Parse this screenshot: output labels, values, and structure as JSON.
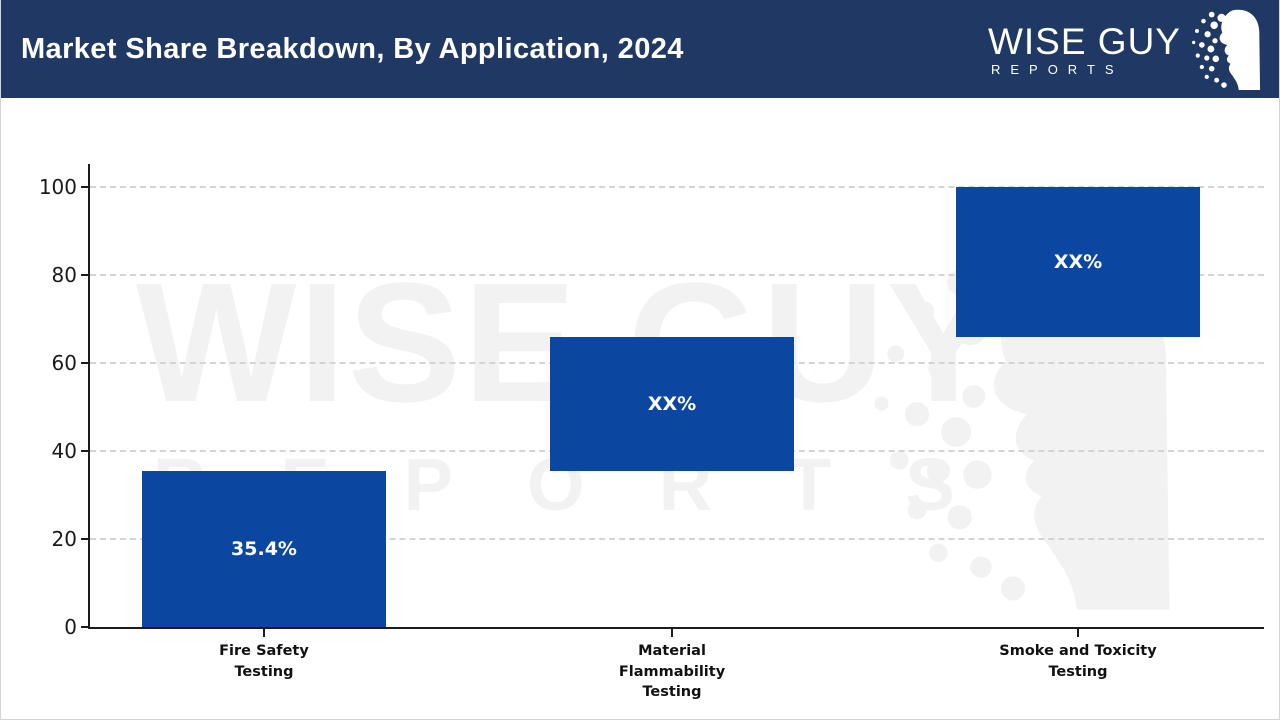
{
  "header": {
    "title": "Market Share Breakdown, By Application, 2024",
    "brand": {
      "line1": "WISE GUY",
      "line2": "REPORTS"
    }
  },
  "watermark": {
    "line1": "WISE GUY",
    "line2": "REPORTS"
  },
  "colors": {
    "header_bg": "#1f3864",
    "bar_fill": "#0b47a1",
    "grid": "#d4d4d4",
    "axis": "#1c1c1c",
    "watermark": "#f2f2f2"
  },
  "chart_data": {
    "type": "bar",
    "subtype": "floating-segment-waterfall",
    "title": "Market Share Breakdown, By Application, 2024",
    "xlabel": "",
    "ylabel": "",
    "ylim": [
      0,
      107
    ],
    "yticks": [
      0,
      20,
      40,
      60,
      80,
      100
    ],
    "grid": "horizontal-dashed",
    "legend": "none",
    "categories": [
      [
        "Fire Safety",
        "Testing"
      ],
      [
        "Material",
        "Flammability",
        "Testing"
      ],
      [
        "Smoke and Toxicity",
        "Testing"
      ]
    ],
    "series": [
      {
        "segments": [
          {
            "category": "Fire Safety Testing",
            "start": 0,
            "end": 35.4,
            "label": "35.4%"
          },
          {
            "category": "Material Flammability Testing",
            "start": 35.4,
            "end": 66,
            "label": "XX%"
          },
          {
            "category": "Smoke and Toxicity Testing",
            "start": 66,
            "end": 100,
            "label": "XX%"
          }
        ]
      }
    ]
  }
}
